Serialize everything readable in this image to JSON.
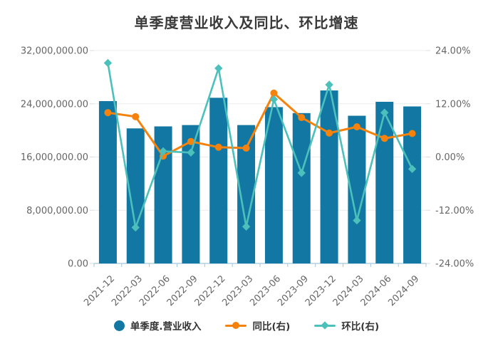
{
  "title": "单季度营业收入及同比、环比增速",
  "colors": {
    "bar": "#1277a2",
    "grid": "#ececec",
    "axis_line": "#a5c6dc",
    "side_tick": "#d5dde3",
    "label": "#666666",
    "title_text": "#3a3a3a"
  },
  "chart_data": {
    "type": "bar+line",
    "title": "单季度营业收入及同比、环比增速",
    "categories": [
      "2021-12",
      "2022-03",
      "2022-06",
      "2022-09",
      "2022-12",
      "2023-03",
      "2023-06",
      "2023-09",
      "2023-12",
      "2024-03",
      "2024-06",
      "2024-09"
    ],
    "series": [
      {
        "key": "revenue",
        "name": "单季度.营业收入",
        "type": "bar",
        "axis": "left",
        "color": "#1277a2",
        "values": [
          24400000,
          20300000,
          20600000,
          20800000,
          24900000,
          20800000,
          23500000,
          22600000,
          26000000,
          22200000,
          24300000,
          23600000
        ]
      },
      {
        "key": "yoy",
        "name": "同比(右)",
        "type": "line",
        "marker": "circle",
        "axis": "right",
        "color": "#f5820d",
        "values": [
          10.0,
          9.1,
          0.2,
          3.5,
          2.2,
          2.0,
          14.4,
          8.9,
          5.4,
          6.8,
          4.2,
          5.3
        ]
      },
      {
        "key": "qoq",
        "name": "环比(右)",
        "type": "line",
        "marker": "diamond",
        "axis": "right",
        "color": "#4cc0bb",
        "values": [
          21.2,
          -15.9,
          1.3,
          1.0,
          20.0,
          -15.7,
          13.0,
          -3.6,
          16.3,
          -14.3,
          10.0,
          -2.7
        ]
      }
    ],
    "left_axis": {
      "min": 0,
      "max": 32000000,
      "tick_values": [
        0,
        8000000,
        16000000,
        24000000,
        32000000
      ],
      "tick_labels": [
        "0.00",
        "8,000,000.00",
        "16,000,000.00",
        "24,000,000.00",
        "32,000,000.00"
      ]
    },
    "right_axis": {
      "min": -24,
      "max": 24,
      "tick_values": [
        -24,
        -12,
        0,
        12,
        24
      ],
      "tick_labels": [
        "-24.00%",
        "-12.00%",
        "0.00%",
        "12.00%",
        "24.00%"
      ]
    },
    "grid": true,
    "legend_position": "bottom"
  }
}
